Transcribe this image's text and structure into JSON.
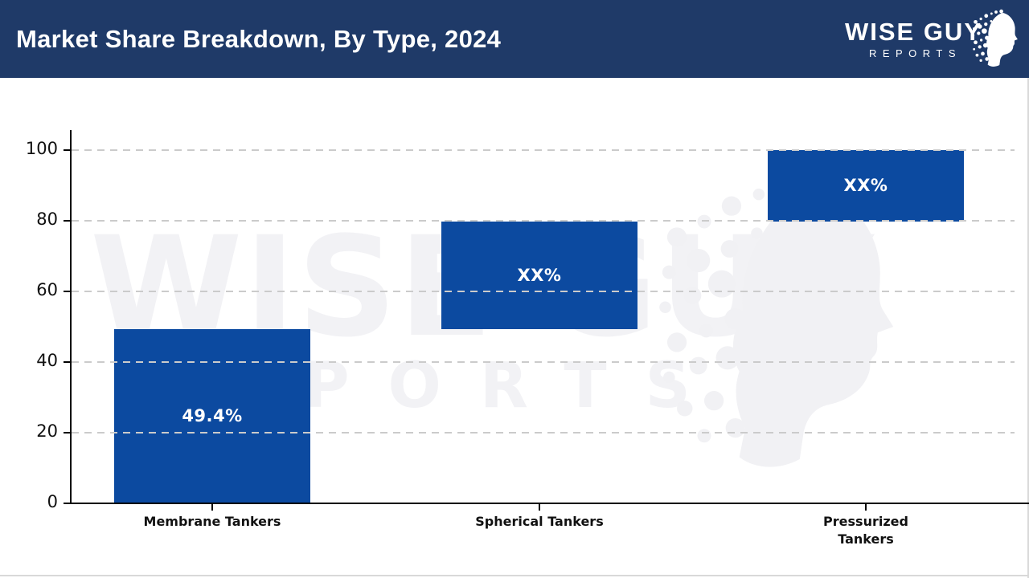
{
  "header": {
    "title": "Market Share Breakdown, By Type, 2024",
    "logo": {
      "line1": "WISE GUY",
      "line2": "REPORTS"
    }
  },
  "watermark": {
    "line1": "WISE GUY",
    "line2": "REPORTS"
  },
  "colors": {
    "header_bg": "#1F3A68",
    "bar": "#0C4AA0",
    "bar_label": "#FFFFFF",
    "grid": "#CBCBCB",
    "axis": "#000000",
    "watermark": "#F2F2F5"
  },
  "chart_data": {
    "type": "bar",
    "variant": "waterfall",
    "title": "Market Share Breakdown, By Type, 2024",
    "categories": [
      "Membrane Tankers",
      "Spherical Tankers",
      "Pressurized Tankers"
    ],
    "category_display": [
      "Membrane Tankers",
      "Spherical Tankers",
      "Pressurized\nTankers"
    ],
    "segments": [
      {
        "category": "Membrane Tankers",
        "start": 0,
        "end": 49.4,
        "value": 49.4,
        "label": "49.4%"
      },
      {
        "category": "Spherical Tankers",
        "start": 49.4,
        "end": 79.8,
        "value": 30.4,
        "label": "XX%"
      },
      {
        "category": "Pressurized Tankers",
        "start": 79.8,
        "end": 100.1,
        "value": 20.3,
        "label": "XX%"
      }
    ],
    "yticks": [
      0,
      20,
      40,
      60,
      80,
      100
    ],
    "ylim": [
      0,
      105.5
    ],
    "grid": "horizontal-dashed",
    "legend": "none",
    "xlabel": "",
    "ylabel": ""
  }
}
